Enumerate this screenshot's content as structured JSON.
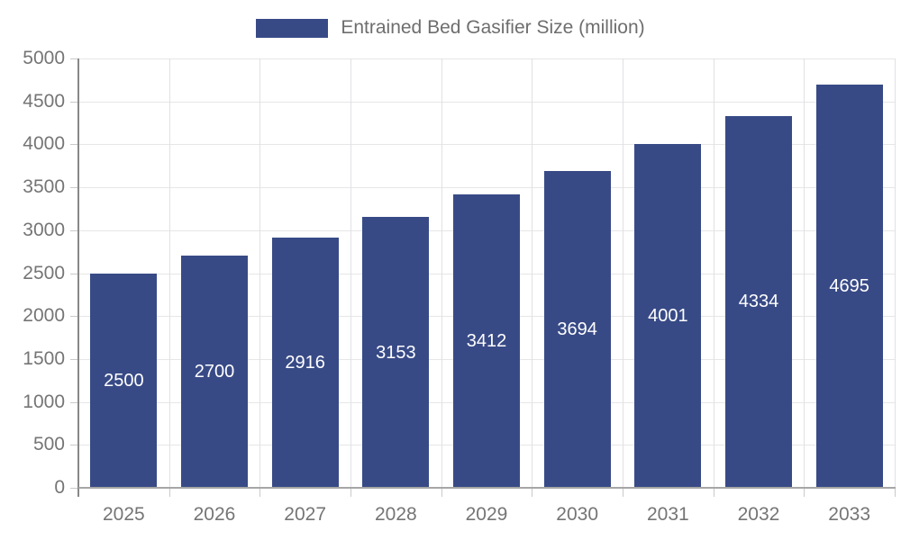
{
  "chart_data": {
    "type": "bar",
    "title": "Entrained Bed Gasifier Size (million)",
    "categories": [
      "2025",
      "2026",
      "2027",
      "2028",
      "2029",
      "2030",
      "2031",
      "2032",
      "2033"
    ],
    "series": [
      {
        "name": "Entrained Bed Gasifier Size (million)",
        "color": "#384A86",
        "values": [
          2500,
          2700,
          2916,
          3153,
          3412,
          3694,
          4001,
          4334,
          4695
        ]
      }
    ],
    "xlabel": "",
    "ylabel": "",
    "ylim": [
      0,
      5000
    ],
    "ytick_step": 500,
    "ytick_labels": [
      "0",
      "500",
      "1000",
      "1500",
      "2000",
      "2500",
      "3000",
      "3500",
      "4000",
      "4500",
      "5000"
    ],
    "grid": "on",
    "legend_position": "top-center",
    "bar_labels_inside": true,
    "bar_label_color": "#ffffff",
    "colors": {
      "bar": "#384A86",
      "grid_horizontal": "#E6E6E6",
      "grid_vertical": "#E1E1E6",
      "axis_left": "#888888",
      "axis_bottom": "#A6A6A6",
      "tick": "#C9C9C9",
      "tick_text": "#757575",
      "legend_text": "#6E6E6E",
      "background": "#ffffff"
    }
  }
}
